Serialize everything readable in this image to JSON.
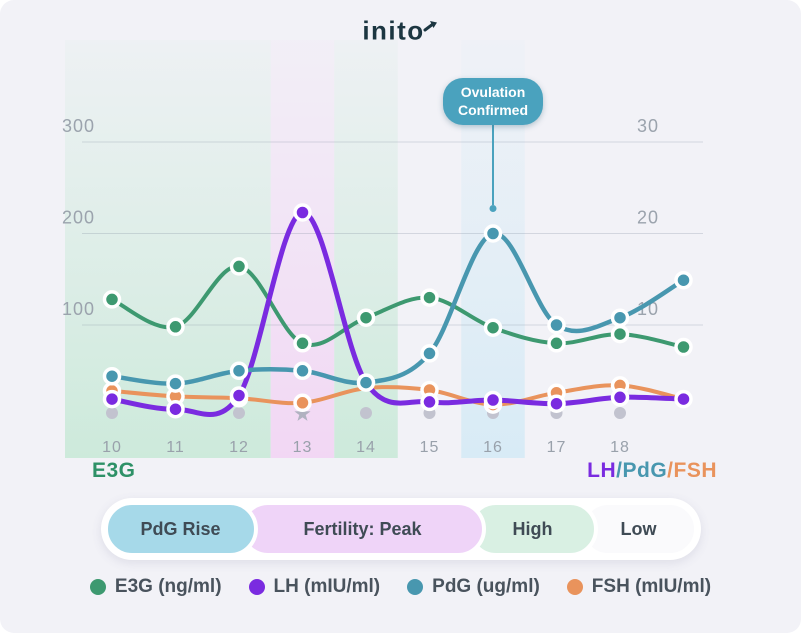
{
  "brand": {
    "logo_text": "inito"
  },
  "badge": {
    "line1": "Ovulation",
    "line2": "Confirmed",
    "color": "#4aa2be"
  },
  "footer": {
    "left_label": "E3G",
    "right_parts": [
      {
        "text": "LH",
        "color": "#7a2be0"
      },
      {
        "text": "/",
        "color": "#4897af"
      },
      {
        "text": "PdG",
        "color": "#4897af"
      },
      {
        "text": "/",
        "color": "#e9935c"
      },
      {
        "text": "FSH",
        "color": "#e9935c"
      }
    ]
  },
  "fertility_pills": [
    {
      "label": "PdG Rise",
      "color": "#a6d9e9"
    },
    {
      "label": "Fertility: Peak",
      "color": "#efd4f8"
    },
    {
      "label": "High",
      "color": "#d9f0e3"
    },
    {
      "label": "Low",
      "color": "#fafafc"
    }
  ],
  "legend": [
    {
      "label": "E3G (ng/ml)",
      "color": "#3d9970"
    },
    {
      "label": "LH (mIU/ml)",
      "color": "#7a2be0"
    },
    {
      "label": "PdG (ug/ml)",
      "color": "#4897af"
    },
    {
      "label": "FSH (mIU/ml)",
      "color": "#e9935c"
    }
  ],
  "chart_data": {
    "type": "line",
    "title": "",
    "x": [
      10,
      11,
      12,
      13,
      14,
      15,
      16,
      17,
      18,
      19
    ],
    "x_tick_labels": [
      "10",
      "11",
      "12",
      "13",
      "14",
      "15",
      "16",
      "17",
      "18",
      ""
    ],
    "left_axis": {
      "label": "E3G",
      "ticks": [
        100,
        200,
        300
      ],
      "range": [
        0,
        330
      ],
      "tick_color": "#9ba3ad"
    },
    "right_axis": {
      "label": "LH/PdG/FSH",
      "ticks": [
        10,
        20,
        30
      ],
      "range": [
        0,
        33
      ],
      "tick_color": "#9ba3ad"
    },
    "grid": "horizontal-only",
    "series": [
      {
        "name": "FSH (mIU/ml)",
        "short": "FSH",
        "axis": "right",
        "color": "#e9935c",
        "width": 4,
        "values": [
          2.8,
          2.2,
          2.0,
          1.5,
          3.1,
          2.9,
          1.3,
          2.6,
          3.4,
          1.9
        ],
        "hidden_dots": [
          4,
          9
        ]
      },
      {
        "name": "E3G (ng/ml)",
        "short": "E3G",
        "axis": "left",
        "color": "#3d9970",
        "width": 4,
        "values": [
          128,
          98,
          164,
          80,
          108,
          130,
          97,
          80,
          90,
          76
        ],
        "hidden_dots": []
      },
      {
        "name": "LH (mIU/ml)",
        "short": "LH",
        "axis": "right",
        "color": "#7a2be0",
        "width": 5,
        "values": [
          1.9,
          0.8,
          2.3,
          22.3,
          3.7,
          1.6,
          1.8,
          1.4,
          2.1,
          1.9
        ],
        "hidden_dots": [
          4
        ]
      },
      {
        "name": "PdG (ug/ml)",
        "short": "PdG",
        "axis": "right",
        "color": "#4897af",
        "width": 4.5,
        "values": [
          4.4,
          3.6,
          5.0,
          5.0,
          3.7,
          6.9,
          20.0,
          10.0,
          10.8,
          14.9
        ],
        "hidden_dots": []
      }
    ],
    "bands": [
      {
        "label": "High",
        "start_day": 10,
        "end_day": 12,
        "color": "#cdeadb",
        "extend_left": true
      },
      {
        "label": "Fertility: Peak",
        "start_day": 13,
        "end_day": 13,
        "color": "#f2d7f4",
        "extend_left": false
      },
      {
        "label": "High",
        "start_day": 14,
        "end_day": 14,
        "color": "#cdeadb",
        "extend_left": false
      },
      {
        "label": "PdG Rise",
        "start_day": 16,
        "end_day": 16,
        "color": "#d8ebf6",
        "extend_left": false
      }
    ],
    "test_markers": {
      "dot_days": [
        10,
        12,
        14,
        15,
        16,
        17,
        18
      ],
      "star_day": 13,
      "color": "#c2c3cf",
      "star_color": "#b0b2c0"
    },
    "annotation": {
      "label": "Ovulation Confirmed",
      "day": 16,
      "series": "PdG (ug/ml)",
      "color": "#4aa2be"
    }
  }
}
